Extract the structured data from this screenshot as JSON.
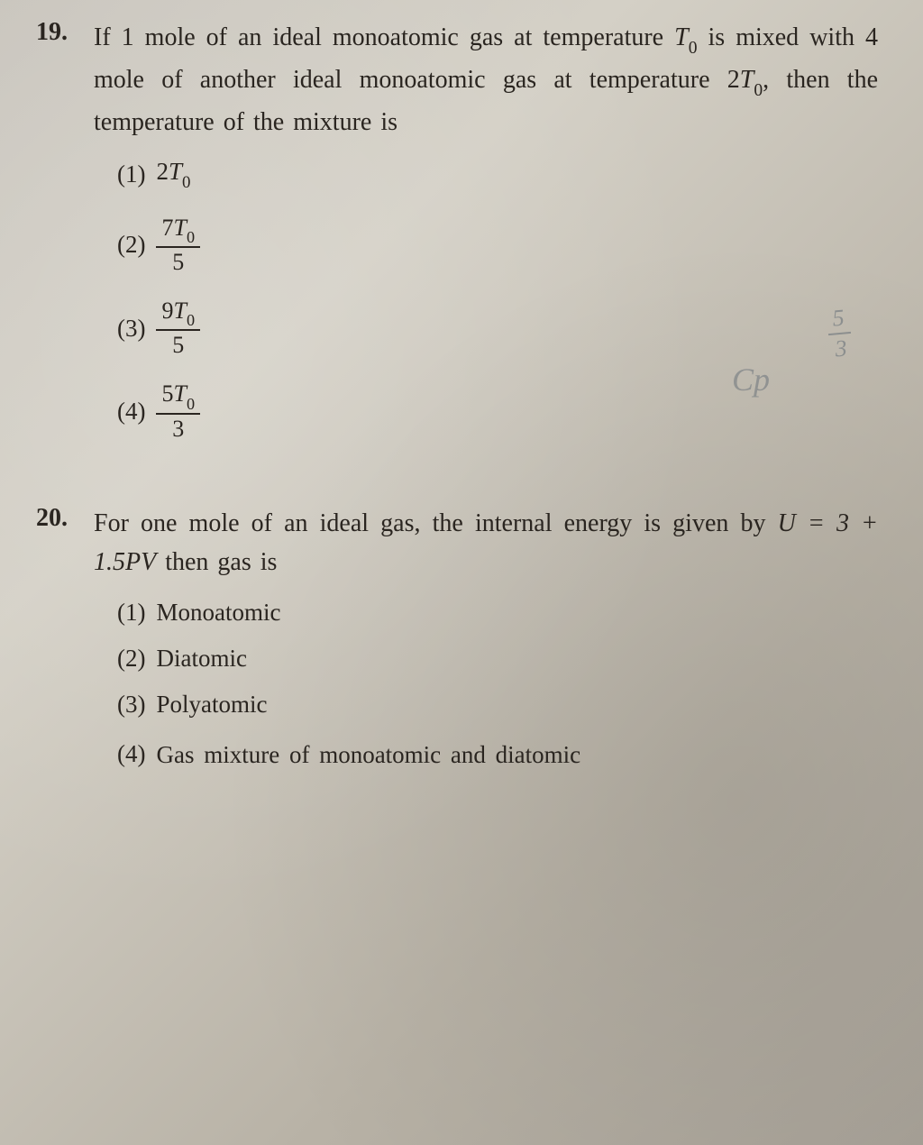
{
  "questions": [
    {
      "number": "19.",
      "text_parts": {
        "p1": "If 1 mole of an ideal monoatomic gas at temperature ",
        "t0_1": "T",
        "t0_1_sub": "0",
        "p2": " is mixed with 4 mole of another ideal monoatomic gas at temperature 2",
        "t0_2": "T",
        "t0_2_sub": "0",
        "p3": ", then the temperature of the mixture is"
      },
      "options": [
        {
          "label": "(1)",
          "type": "simple",
          "prefix": "2",
          "var": "T",
          "sub": "0"
        },
        {
          "label": "(2)",
          "type": "fraction",
          "num_prefix": "7",
          "num_var": "T",
          "num_sub": "0",
          "den": "5"
        },
        {
          "label": "(3)",
          "type": "fraction",
          "num_prefix": "9",
          "num_var": "T",
          "num_sub": "0",
          "den": "5"
        },
        {
          "label": "(4)",
          "type": "fraction",
          "num_prefix": "5",
          "num_var": "T",
          "num_sub": "0",
          "den": "3"
        }
      ]
    },
    {
      "number": "20.",
      "text_parts": {
        "p1": "For one mole of an ideal gas, the internal energy is given by ",
        "eq": "U = 3 + 1.5PV",
        "p2": " then gas is"
      },
      "options": [
        {
          "label": "(1)",
          "text": "Monoatomic"
        },
        {
          "label": "(2)",
          "text": "Diatomic"
        },
        {
          "label": "(3)",
          "text": "Polyatomic"
        },
        {
          "label": "(4)",
          "text": "Gas mixture of monoatomic and diatomic"
        }
      ]
    }
  ],
  "handwriting": {
    "frac_num": "5",
    "frac_den": "3",
    "cp": "Cp"
  }
}
